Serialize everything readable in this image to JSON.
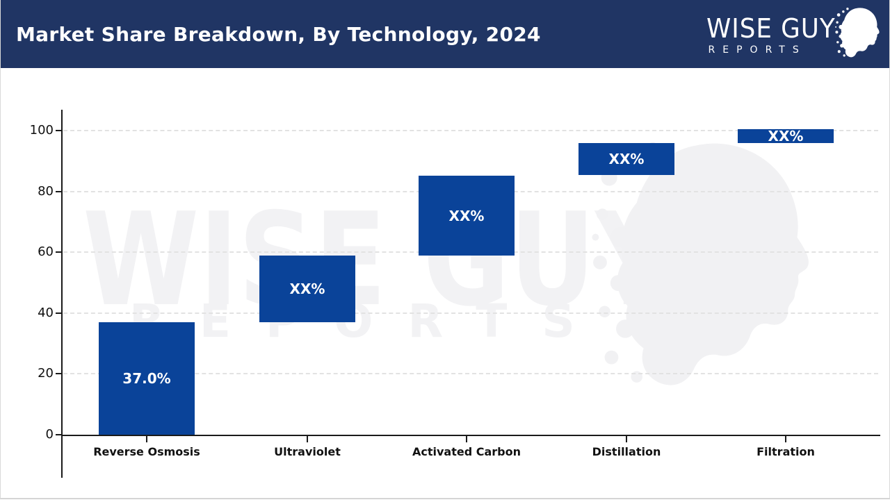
{
  "header": {
    "title": "Market Share Breakdown, By Technology, 2024",
    "logo_line1": "WISE GUY",
    "logo_line2": "REPORTS"
  },
  "watermark": {
    "line1": "WISE GUY",
    "line2": "REPORTS"
  },
  "chart_data": {
    "type": "bar",
    "subtype": "floating-waterfall",
    "title": "Market Share Breakdown, By Technology, 2024",
    "categories": [
      "Reverse Osmosis",
      "Ultraviolet",
      "Activated Carbon",
      "Distillation",
      "Filtration"
    ],
    "series": [
      {
        "name": "Market Share",
        "segments": [
          {
            "category": "Reverse Osmosis",
            "start": 0,
            "end": 37.0,
            "label": "37.0%"
          },
          {
            "category": "Ultraviolet",
            "start": 37.0,
            "end": 58.8,
            "label": "XX%"
          },
          {
            "category": "Activated Carbon",
            "start": 58.8,
            "end": 85.2,
            "label": "XX%"
          },
          {
            "category": "Distillation",
            "start": 85.4,
            "end": 96.0,
            "label": "XX%"
          },
          {
            "category": "Filtration",
            "start": 96.0,
            "end": 100.5,
            "label": "XX%"
          }
        ]
      }
    ],
    "xlabel": "",
    "ylabel": "",
    "y_ticks": [
      0,
      20,
      40,
      60,
      80,
      100
    ],
    "ylim": [
      0,
      105.5
    ],
    "grid": "horizontal-dashed",
    "legend": "none"
  },
  "colors": {
    "header_bg": "#203564",
    "bar": "#0a4399",
    "bar_label": "#ffffff",
    "grid": "#e2e2e2",
    "axis": "#1a1a1a",
    "watermark": "#f2f2f4"
  }
}
